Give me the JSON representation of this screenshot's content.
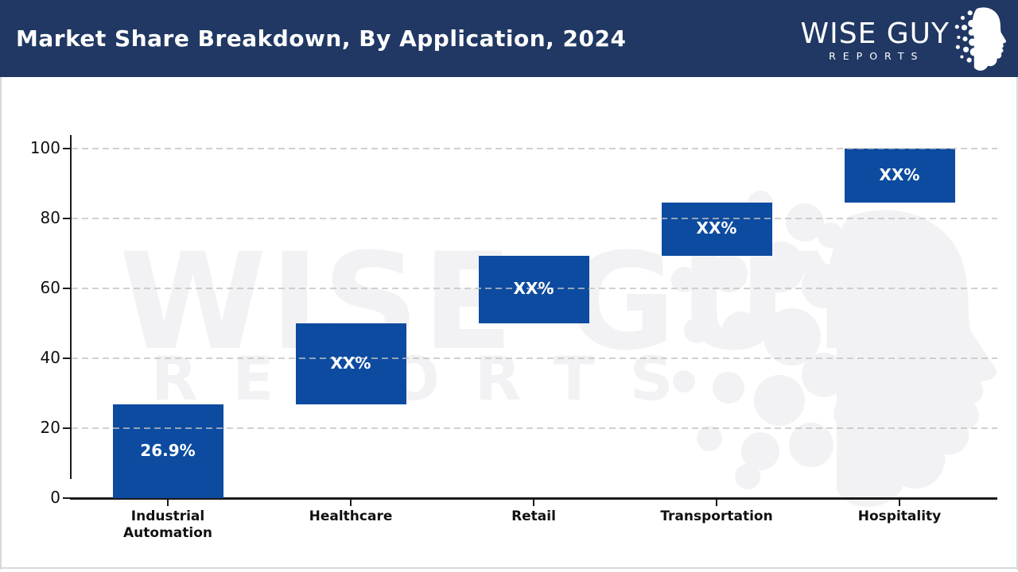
{
  "header": {
    "title": "Market Share Breakdown, By Application, 2024",
    "logo": {
      "name": "WISE GUY",
      "sub": "REPORTS"
    }
  },
  "watermark": {
    "name": "WISE GUY",
    "sub": "REPORTS"
  },
  "chart_data": {
    "type": "waterfall",
    "title": "Market Share Breakdown, By Application, 2024",
    "categories": [
      "Industrial Automation",
      "Healthcare",
      "Retail",
      "Transportation",
      "Hospitality"
    ],
    "series": [
      {
        "name": "Market share (%)",
        "segments": [
          {
            "category": "Industrial Automation",
            "start": 0,
            "end": 26.9,
            "label": "26.9%"
          },
          {
            "category": "Healthcare",
            "start": 26.9,
            "end": 50.0,
            "label": "XX%"
          },
          {
            "category": "Retail",
            "start": 50.0,
            "end": 69.4,
            "label": "XX%"
          },
          {
            "category": "Transportation",
            "start": 69.4,
            "end": 84.5,
            "label": "XX%"
          },
          {
            "category": "Hospitality",
            "start": 84.5,
            "end": 100.0,
            "label": "XX%"
          }
        ]
      }
    ],
    "xlabel": "",
    "ylabel": "",
    "ylim": [
      0,
      105
    ],
    "yticks": [
      0,
      20,
      40,
      60,
      80,
      100
    ],
    "grid": "horizontal-dashed, drawn over bars",
    "legend": "none",
    "bar_color": "#0c4ba0",
    "bar_label_color": "#ffffff"
  },
  "colors": {
    "header_bg": "#203863",
    "bar": "#0c4ba0",
    "grid": "#c1c1c1",
    "axis": "#1a1a1a",
    "watermark": "#f2f2f4",
    "border": "#d9d9d9"
  }
}
